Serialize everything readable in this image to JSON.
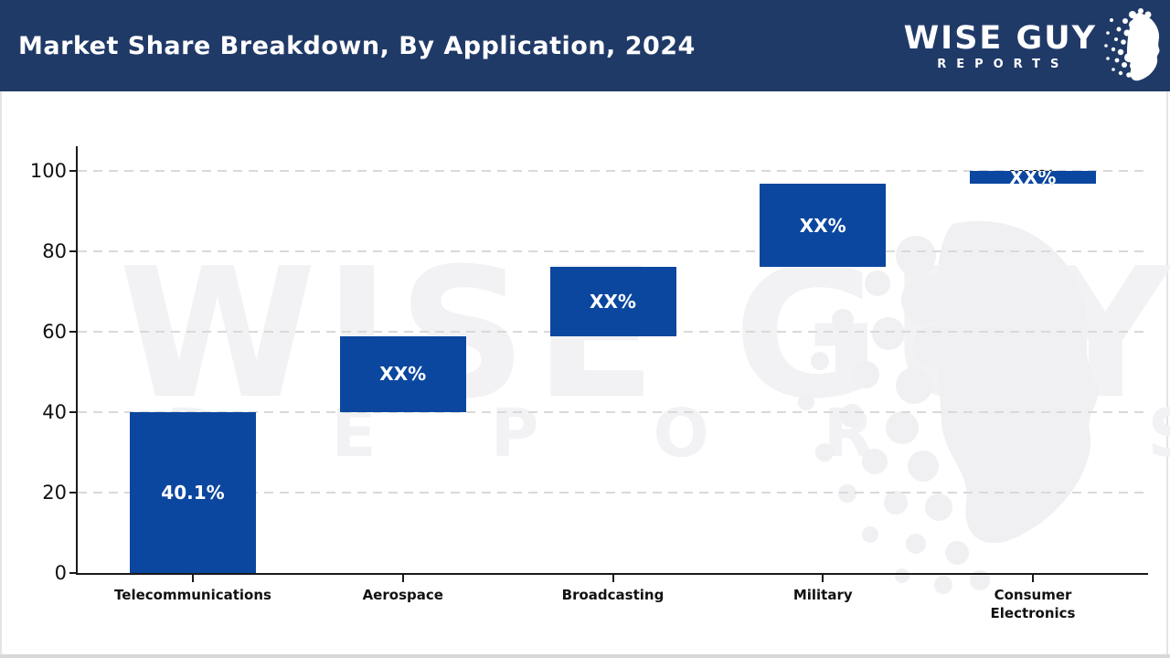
{
  "header": {
    "title": "Market Share Breakdown, By Application, 2024",
    "logo": {
      "line1": "WISE GUY",
      "line2": "REPORTS"
    }
  },
  "watermark": {
    "line1": "WISE GUY",
    "line2": "R E P O R T S"
  },
  "chart_data": {
    "type": "bar",
    "subtype": "waterfall",
    "title": "Market Share Breakdown, By Application, 2024",
    "xlabel": "",
    "ylabel": "",
    "ylim": [
      0,
      106
    ],
    "yticks": [
      0,
      20,
      40,
      60,
      80,
      100
    ],
    "grid": "dashed-horizontal",
    "legend": "none",
    "bar_color": "#0b479f",
    "value_label_color": "#ffffff",
    "categories": [
      "Telecommunications",
      "Aerospace",
      "Broadcasting",
      "Military",
      "Consumer\nElectronics"
    ],
    "segments": [
      {
        "category": "Telecommunications",
        "start": 0,
        "end": 40.1,
        "value": 40.1,
        "value_label": "40.1%"
      },
      {
        "category": "Aerospace",
        "start": 40.1,
        "end": 58.9,
        "value": 18.8,
        "value_label": "XX%"
      },
      {
        "category": "Broadcasting",
        "start": 58.9,
        "end": 76.1,
        "value": 17.2,
        "value_label": "XX%"
      },
      {
        "category": "Military",
        "start": 76.1,
        "end": 96.8,
        "value": 20.7,
        "value_label": "XX%"
      },
      {
        "category": "Consumer Electronics",
        "start": 96.8,
        "end": 100,
        "value": 3.2,
        "value_label": "XX%"
      }
    ]
  }
}
